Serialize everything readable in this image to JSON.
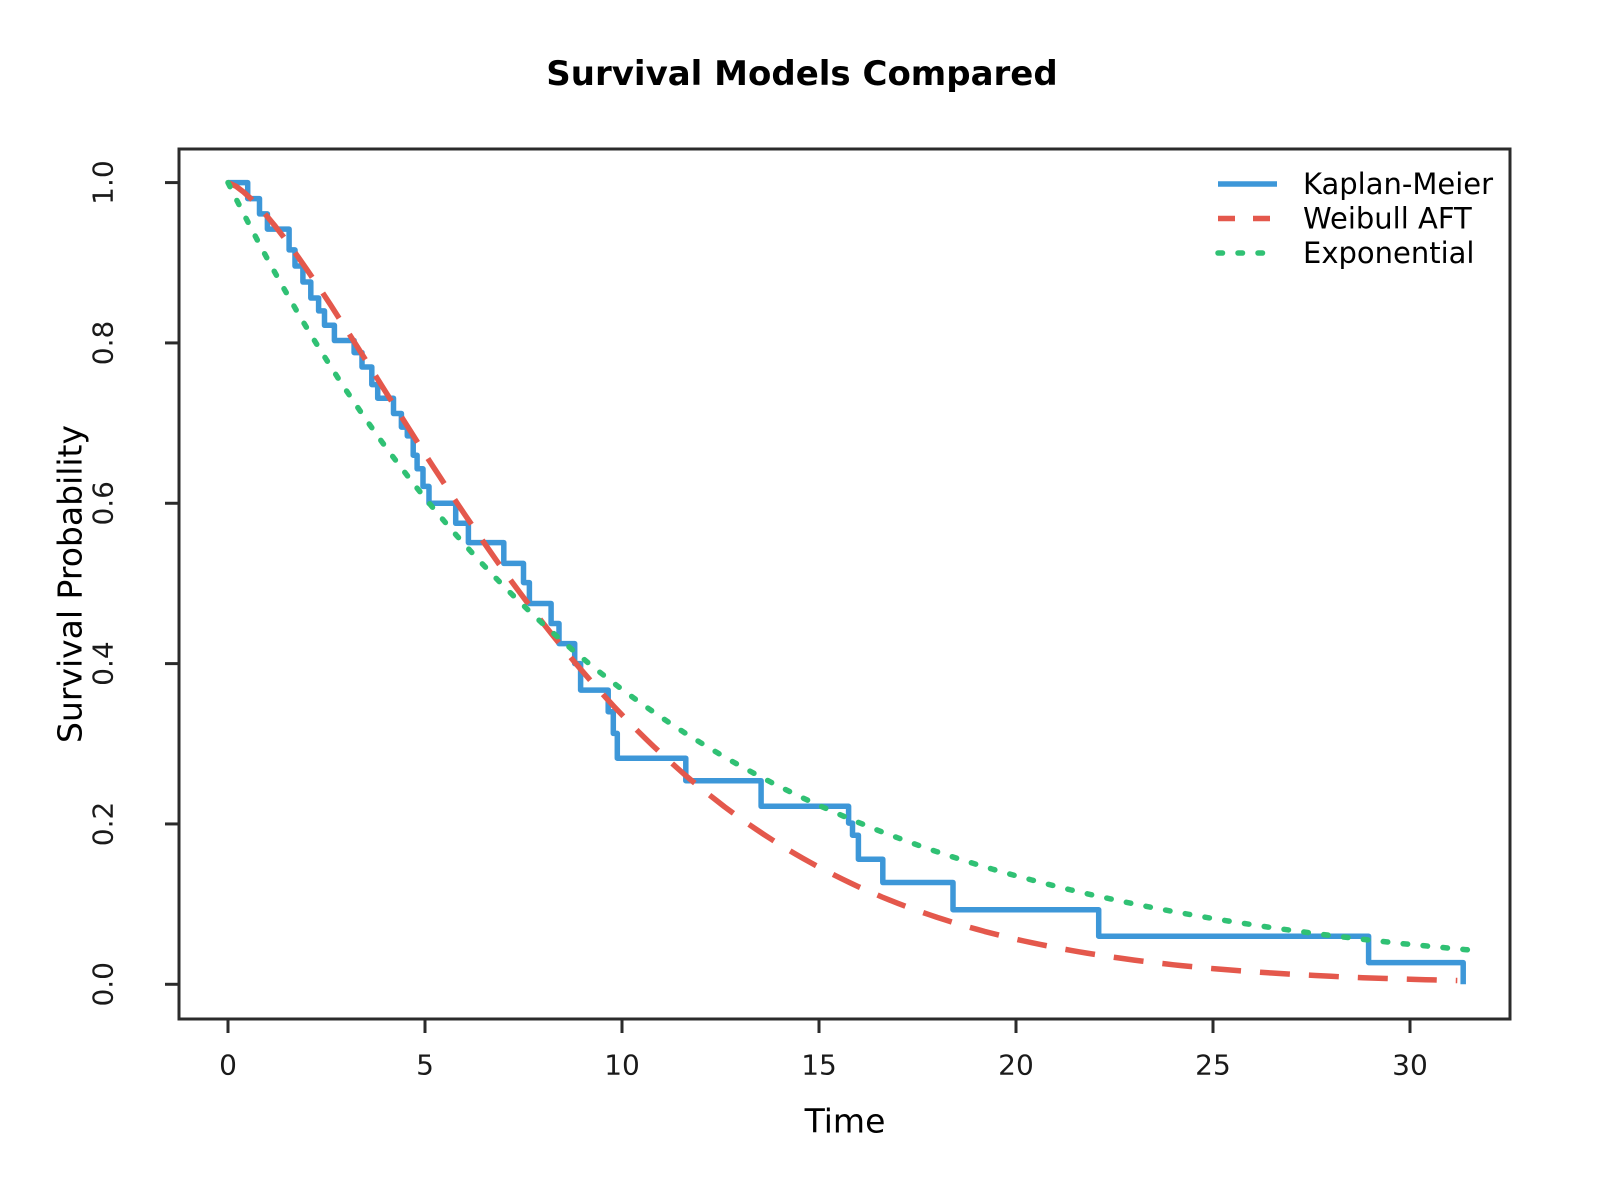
{
  "title": "Survival Models Compared",
  "axes": {
    "xlabel": "Time",
    "ylabel": "Survival Probability",
    "x_ticks": [
      0,
      5,
      10,
      15,
      20,
      25,
      30
    ],
    "y_ticks": [
      0.0,
      0.2,
      0.4,
      0.6,
      0.8,
      1.0
    ],
    "xlim": [
      -1.244,
      32.538
    ],
    "ylim": [
      -0.0433,
      1.0419
    ],
    "grid": false
  },
  "legend": {
    "position": "top-right-inside",
    "items": [
      {
        "label": "Kaplan-Meier",
        "color": "#3d97d8",
        "style": "solid"
      },
      {
        "label": "Weibull AFT",
        "color": "#e4584c",
        "style": "dashed"
      },
      {
        "label": "Exponential",
        "color": "#30c174",
        "style": "dotted"
      }
    ]
  },
  "chart_data": {
    "type": "line",
    "title": "Survival Models Compared",
    "xlabel": "Time",
    "ylabel": "Survival Probability",
    "xlim": [
      -1.244,
      32.538
    ],
    "ylim": [
      -0.0433,
      1.0419
    ],
    "legend_position": "top-right-inside",
    "series": [
      {
        "name": "Kaplan-Meier",
        "kind": "step",
        "color": "#3d97d8",
        "style": "solid",
        "points": [
          [
            0.0,
            1.0
          ],
          [
            0.5,
            0.98
          ],
          [
            0.8,
            0.961
          ],
          [
            1.0,
            0.942
          ],
          [
            1.55,
            0.916
          ],
          [
            1.7,
            0.896
          ],
          [
            1.9,
            0.876
          ],
          [
            2.1,
            0.856
          ],
          [
            2.3,
            0.84
          ],
          [
            2.45,
            0.822
          ],
          [
            2.7,
            0.803
          ],
          [
            3.2,
            0.788
          ],
          [
            3.4,
            0.77
          ],
          [
            3.65,
            0.748
          ],
          [
            3.8,
            0.731
          ],
          [
            4.2,
            0.712
          ],
          [
            4.4,
            0.695
          ],
          [
            4.55,
            0.684
          ],
          [
            4.7,
            0.66
          ],
          [
            4.8,
            0.643
          ],
          [
            4.95,
            0.621
          ],
          [
            5.1,
            0.6
          ],
          [
            5.78,
            0.575
          ],
          [
            6.1,
            0.551
          ],
          [
            7.0,
            0.525
          ],
          [
            7.5,
            0.501
          ],
          [
            7.65,
            0.475
          ],
          [
            8.2,
            0.45
          ],
          [
            8.4,
            0.425
          ],
          [
            8.8,
            0.4
          ],
          [
            8.95,
            0.367
          ],
          [
            9.65,
            0.34
          ],
          [
            9.78,
            0.313
          ],
          [
            9.88,
            0.282
          ],
          [
            11.62,
            0.254
          ],
          [
            13.53,
            0.222
          ],
          [
            15.75,
            0.201
          ],
          [
            15.85,
            0.186
          ],
          [
            16.0,
            0.156
          ],
          [
            16.62,
            0.127
          ],
          [
            18.4,
            0.093
          ],
          [
            22.1,
            0.06
          ],
          [
            28.95,
            0.027
          ],
          [
            31.35,
            0.0
          ]
        ]
      },
      {
        "name": "Weibull AFT",
        "kind": "function",
        "model": "weibull",
        "shape": 1.4,
        "scale": 9.4,
        "t_range": [
          0,
          31.3
        ],
        "color": "#e4584c",
        "style": "dashed"
      },
      {
        "name": "Exponential",
        "kind": "function",
        "model": "exponential",
        "rate": 0.1,
        "t_range": [
          0,
          31.9
        ],
        "color": "#30c174",
        "style": "dotted"
      }
    ]
  }
}
